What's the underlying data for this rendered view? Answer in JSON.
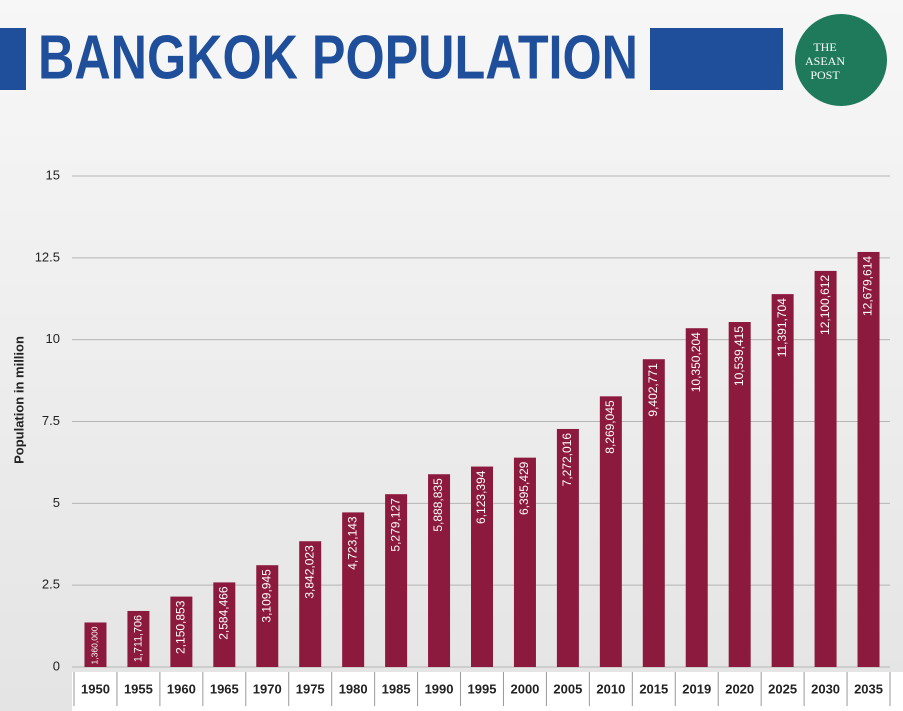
{
  "logo": {
    "lines": [
      "THE",
      "ASEAN",
      "POST"
    ]
  },
  "chart_data": {
    "type": "bar",
    "title": "BANGKOK POPULATION",
    "y_label": "Population in million",
    "categories": [
      "1950",
      "1955",
      "1960",
      "1965",
      "1970",
      "1975",
      "1980",
      "1985",
      "1990",
      "1995",
      "2000",
      "2005",
      "2010",
      "2015",
      "2019",
      "2020",
      "2025",
      "2030",
      "2035"
    ],
    "values": [
      1.36,
      1.711706,
      2.150853,
      2.584466,
      3.109945,
      3.842023,
      4.723143,
      5.279127,
      5.888835,
      6.123394,
      6.395429,
      7.272016,
      8.269045,
      9.402771,
      10.350204,
      10.539415,
      11.391704,
      12.100612,
      12.679614
    ],
    "value_labels": [
      "1,360,000",
      "1,711,706",
      "2,150,853",
      "2,584,466",
      "3,109,945",
      "3,842,023",
      "4,723,143",
      "5,279,127",
      "5,888,835",
      "6,123,394",
      "6,395,429",
      "7,272,016",
      "8,269,045",
      "9,402,771",
      "10,350,204",
      "10,539,415",
      "11,391,704",
      "12,100,612",
      "12,679,614"
    ],
    "color": "#8c1a3f",
    "ylim": [
      0,
      15
    ],
    "yticks": [
      0,
      2.5,
      5,
      7.5,
      10,
      12.5,
      15
    ],
    "grid": true
  }
}
